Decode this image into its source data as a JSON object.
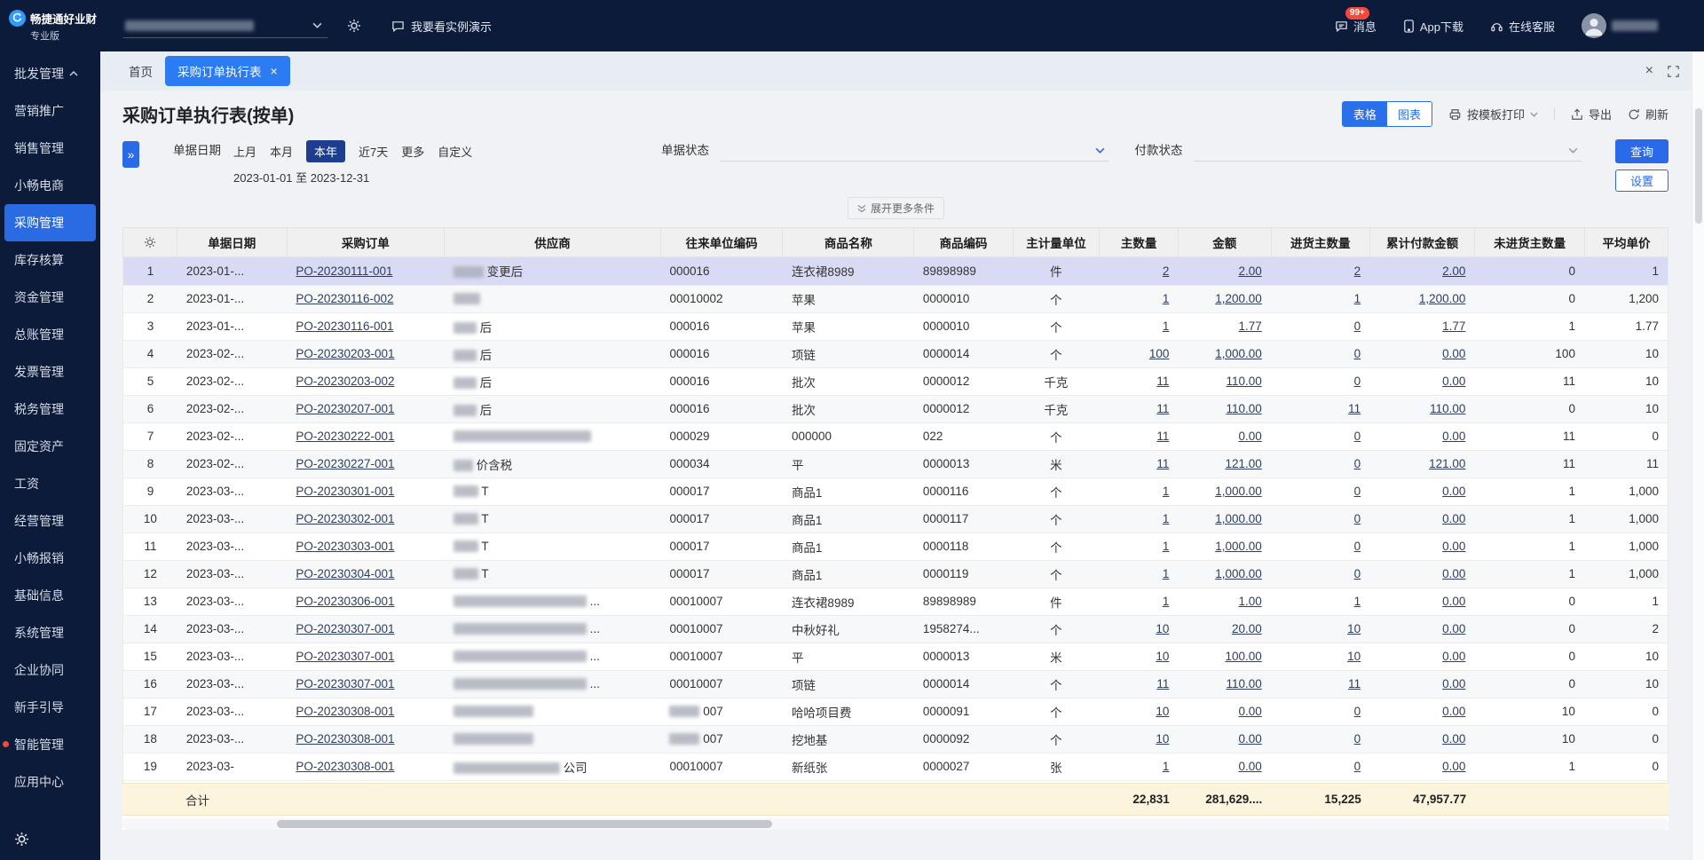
{
  "topbar": {
    "logo_title": "畅捷通好业财",
    "logo_subtitle": "专业版",
    "demo_text": "我要看实例演示",
    "messages": "消息",
    "messages_badge": "99+",
    "app_download": "App下载",
    "online_service": "在线客服"
  },
  "sidebar": {
    "items": [
      {
        "key": "wholesale",
        "label": "批发管理",
        "arrow": true
      },
      {
        "key": "marketing",
        "label": "营销推广"
      },
      {
        "key": "sales",
        "label": "销售管理"
      },
      {
        "key": "ecommerce",
        "label": "小畅电商"
      },
      {
        "key": "purchase",
        "label": "采购管理",
        "active": true
      },
      {
        "key": "inventory-accounting",
        "label": "库存核算"
      },
      {
        "key": "funds",
        "label": "资金管理"
      },
      {
        "key": "general-ledger",
        "label": "总账管理"
      },
      {
        "key": "invoice",
        "label": "发票管理"
      },
      {
        "key": "tax",
        "label": "税务管理"
      },
      {
        "key": "fixed-assets",
        "label": "固定资产"
      },
      {
        "key": "payroll",
        "label": "工资"
      },
      {
        "key": "operation",
        "label": "经营管理"
      },
      {
        "key": "expense",
        "label": "小畅报销"
      },
      {
        "key": "base-info",
        "label": "基础信息"
      },
      {
        "key": "system",
        "label": "系统管理"
      },
      {
        "key": "collaboration",
        "label": "企业协同"
      },
      {
        "key": "beginner-guide",
        "label": "新手引导"
      },
      {
        "key": "smart",
        "label": "智能管理",
        "dot": true
      },
      {
        "key": "app-center",
        "label": "应用中心"
      }
    ]
  },
  "tabs": {
    "home": "首页",
    "current": "采购订单执行表"
  },
  "page": {
    "title": "采购订单执行表(按单)"
  },
  "view_toolbar": {
    "table": "表格",
    "chart": "图表",
    "print": "按模板打印",
    "export": "导出",
    "refresh": "刷新"
  },
  "filters": {
    "date_label": "单据日期",
    "date_options": [
      "上月",
      "本月",
      "本年",
      "近7天",
      "更多",
      "自定义"
    ],
    "date_selected": "本年",
    "date_range": "2023-01-01 至 2023-12-31",
    "doc_status_label": "单据状态",
    "pay_status_label": "付款状态",
    "expand_more": "展开更多条件",
    "query_button": "查询",
    "settings_button": "设置"
  },
  "table": {
    "columns": [
      "单据日期",
      "采购订单",
      "供应商",
      "往来单位编码",
      "商品名称",
      "商品编码",
      "主计量单位",
      "主数量",
      "金额",
      "进货主数量",
      "累计付款金额",
      "未进货主数量",
      "平均单价"
    ],
    "rows": [
      {
        "n": 1,
        "selected": true,
        "date": "2023-01-...",
        "po": "PO-20230111-001",
        "supplier": {
          "redact": 34,
          "text": "变更后"
        },
        "unit_code": "000016",
        "product": "连衣裙8989",
        "product_code": "89898989",
        "uom": "件",
        "qty": "2",
        "amount": "2.00",
        "in_qty": "2",
        "paid": "2.00",
        "out_qty": "0",
        "avg": "1"
      },
      {
        "n": 2,
        "date": "2023-01-...",
        "po": "PO-20230116-002",
        "supplier": {
          "redact": 30
        },
        "unit_code": "00010002",
        "product": "苹果",
        "product_code": "0000010",
        "uom": "个",
        "qty": "1",
        "amount": "1,200.00",
        "in_qty": "1",
        "paid": "1,200.00",
        "out_qty": "0",
        "avg": "1,200"
      },
      {
        "n": 3,
        "date": "2023-01-...",
        "po": "PO-20230116-001",
        "supplier": {
          "redact": 26,
          "text": "后"
        },
        "unit_code": "000016",
        "product": "苹果",
        "product_code": "0000010",
        "uom": "个",
        "qty": "1",
        "amount": "1.77",
        "in_qty": "0",
        "paid": "1.77",
        "out_qty": "1",
        "avg": "1.77"
      },
      {
        "n": 4,
        "date": "2023-02-...",
        "po": "PO-20230203-001",
        "supplier": {
          "redact": 26,
          "text": "后"
        },
        "unit_code": "000016",
        "product": "项链",
        "product_code": "0000014",
        "uom": "个",
        "qty": "100",
        "amount": "1,000.00",
        "in_qty": "0",
        "paid": "0.00",
        "out_qty": "100",
        "avg": "10"
      },
      {
        "n": 5,
        "date": "2023-02-...",
        "po": "PO-20230203-002",
        "supplier": {
          "redact": 26,
          "text": "后"
        },
        "unit_code": "000016",
        "product": "批次",
        "product_code": "0000012",
        "uom": "千克",
        "qty": "11",
        "amount": "110.00",
        "in_qty": "0",
        "paid": "0.00",
        "out_qty": "11",
        "avg": "10"
      },
      {
        "n": 6,
        "date": "2023-02-...",
        "po": "PO-20230207-001",
        "supplier": {
          "redact": 26,
          "text": "后"
        },
        "unit_code": "000016",
        "product": "批次",
        "product_code": "0000012",
        "uom": "千克",
        "qty": "11",
        "amount": "110.00",
        "in_qty": "11",
        "paid": "110.00",
        "out_qty": "0",
        "avg": "10"
      },
      {
        "n": 7,
        "date": "2023-02-...",
        "po": "PO-20230222-001",
        "supplier": {
          "redact": 155
        },
        "unit_code": "000029",
        "product": "000000",
        "product_code": "022",
        "uom": "个",
        "qty": "11",
        "amount": "0.00",
        "in_qty": "0",
        "paid": "0.00",
        "out_qty": "11",
        "avg": "0"
      },
      {
        "n": 8,
        "date": "2023-02-...",
        "po": "PO-20230227-001",
        "supplier": {
          "redact": 22,
          "text": "价含税"
        },
        "unit_code": "000034",
        "product": "平",
        "product_code": "0000013",
        "uom": "米",
        "qty": "11",
        "amount": "121.00",
        "in_qty": "0",
        "paid": "121.00",
        "out_qty": "11",
        "avg": "11"
      },
      {
        "n": 9,
        "date": "2023-03-...",
        "po": "PO-20230301-001",
        "supplier": {
          "redact": 28,
          "text": "T"
        },
        "unit_code": "000017",
        "product": "商品1",
        "product_code": "0000116",
        "uom": "个",
        "qty": "1",
        "amount": "1,000.00",
        "in_qty": "0",
        "paid": "0.00",
        "out_qty": "1",
        "avg": "1,000"
      },
      {
        "n": 10,
        "date": "2023-03-...",
        "po": "PO-20230302-001",
        "supplier": {
          "redact": 28,
          "text": "T"
        },
        "unit_code": "000017",
        "product": "商品1",
        "product_code": "0000117",
        "uom": "个",
        "qty": "1",
        "amount": "1,000.00",
        "in_qty": "0",
        "paid": "0.00",
        "out_qty": "1",
        "avg": "1,000"
      },
      {
        "n": 11,
        "date": "2023-03-...",
        "po": "PO-20230303-001",
        "supplier": {
          "redact": 28,
          "text": "T"
        },
        "unit_code": "000017",
        "product": "商品1",
        "product_code": "0000118",
        "uom": "个",
        "qty": "1",
        "amount": "1,000.00",
        "in_qty": "0",
        "paid": "0.00",
        "out_qty": "1",
        "avg": "1,000"
      },
      {
        "n": 12,
        "date": "2023-03-...",
        "po": "PO-20230304-001",
        "supplier": {
          "redact": 28,
          "text": "T"
        },
        "unit_code": "000017",
        "product": "商品1",
        "product_code": "0000119",
        "uom": "个",
        "qty": "1",
        "amount": "1,000.00",
        "in_qty": "0",
        "paid": "0.00",
        "out_qty": "1",
        "avg": "1,000"
      },
      {
        "n": 13,
        "date": "2023-03-...",
        "po": "PO-20230306-001",
        "supplier": {
          "redact": 150,
          "text": "..."
        },
        "unit_code": "00010007",
        "product": "连衣裙8989",
        "product_code": "89898989",
        "uom": "件",
        "qty": "1",
        "amount": "1.00",
        "in_qty": "1",
        "paid": "0.00",
        "out_qty": "0",
        "avg": "1"
      },
      {
        "n": 14,
        "date": "2023-03-...",
        "po": "PO-20230307-001",
        "supplier": {
          "redact": 150,
          "text": "..."
        },
        "unit_code": "00010007",
        "product": "中秋好礼",
        "product_code": "1958274...",
        "uom": "个",
        "qty": "10",
        "amount": "20.00",
        "in_qty": "10",
        "paid": "0.00",
        "out_qty": "0",
        "avg": "2"
      },
      {
        "n": 15,
        "date": "2023-03-...",
        "po": "PO-20230307-001",
        "supplier": {
          "redact": 150,
          "text": "..."
        },
        "unit_code": "00010007",
        "product": "平",
        "product_code": "0000013",
        "uom": "米",
        "qty": "10",
        "amount": "100.00",
        "in_qty": "10",
        "paid": "0.00",
        "out_qty": "0",
        "avg": "10"
      },
      {
        "n": 16,
        "date": "2023-03-...",
        "po": "PO-20230307-001",
        "supplier": {
          "redact": 150,
          "text": "..."
        },
        "unit_code": "00010007",
        "product": "项链",
        "product_code": "0000014",
        "uom": "个",
        "qty": "11",
        "amount": "110.00",
        "in_qty": "11",
        "paid": "0.00",
        "out_qty": "0",
        "avg": "10"
      },
      {
        "n": 17,
        "date": "2023-03-...",
        "po": "PO-20230308-001",
        "supplier": {
          "redact": 90
        },
        "unit_code": {
          "redact": 34,
          "text": "007"
        },
        "product": "哈哈项目费",
        "product_code": "0000091",
        "uom": "个",
        "qty": "10",
        "amount": "0.00",
        "in_qty": "0",
        "paid": "0.00",
        "out_qty": "10",
        "avg": "0"
      },
      {
        "n": 18,
        "date": "2023-03-...",
        "po": "PO-20230308-001",
        "supplier": {
          "redact": 90
        },
        "unit_code": {
          "redact": 34,
          "text": "007"
        },
        "product": "挖地基",
        "product_code": "0000092",
        "uom": "个",
        "qty": "10",
        "amount": "0.00",
        "in_qty": "0",
        "paid": "0.00",
        "out_qty": "10",
        "avg": "0"
      },
      {
        "n": 19,
        "date": "2023-03-",
        "po": "PO-20230308-001",
        "supplier": {
          "redact": 120,
          "text": "公司"
        },
        "unit_code": "00010007",
        "product": "新纸张",
        "product_code": "0000027",
        "uom": "张",
        "qty": "1",
        "amount": "0.00",
        "in_qty": "0",
        "paid": "0.00",
        "out_qty": "1",
        "avg": "0"
      }
    ],
    "total": {
      "label": "合计",
      "qty": "22,831",
      "amount": "281,629....",
      "in_qty": "15,225",
      "paid": "47,957.77"
    }
  },
  "colors": {
    "primary": "#2a6ae8",
    "dark": "#0c1b3a",
    "selected_row": "#d9daf4",
    "total_bg": "#fcf4dc",
    "badge_red": "#f5483d"
  }
}
